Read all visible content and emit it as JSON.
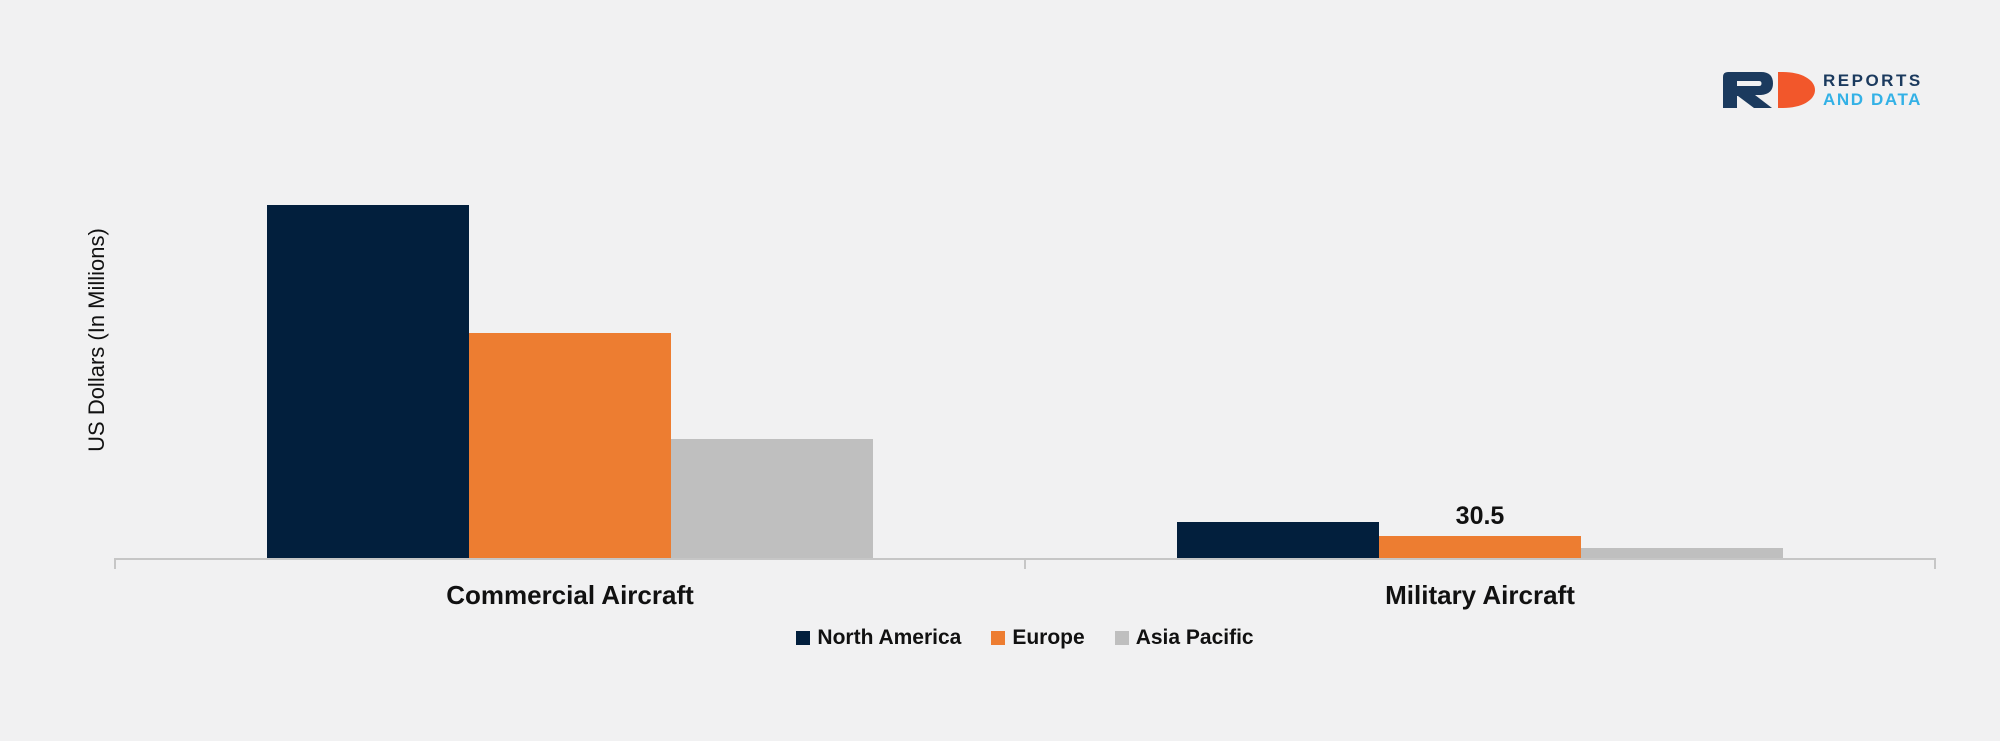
{
  "logo": {
    "line1": "REPORTS",
    "line2": "AND DATA",
    "mark_r_color": "#1b3a5e",
    "mark_d_color": "#f2572b",
    "line1_color": "#1b3a5e",
    "line2_color": "#33b1e6"
  },
  "chart_data": {
    "type": "bar",
    "title": "",
    "xlabel": "",
    "ylabel": "US Dollars (In Millions)",
    "categories": [
      "Commercial Aircraft",
      "Military Aircraft"
    ],
    "series": [
      {
        "name": "North America",
        "color": "#021f3d",
        "values": [
          490,
          50
        ],
        "labels": [
          null,
          null
        ]
      },
      {
        "name": "Europe",
        "color": "#ed7d31",
        "values": [
          312,
          30.5
        ],
        "labels": [
          null,
          "30.5"
        ]
      },
      {
        "name": "Asia Pacific",
        "color": "#bfbfbf",
        "values": [
          165,
          14
        ],
        "labels": [
          null,
          null
        ]
      }
    ],
    "ylim": [
      0,
      520
    ],
    "grid": false,
    "legend_position": "bottom",
    "axis_color": "#c6c6c6",
    "background_color": "#f1f1f2"
  }
}
